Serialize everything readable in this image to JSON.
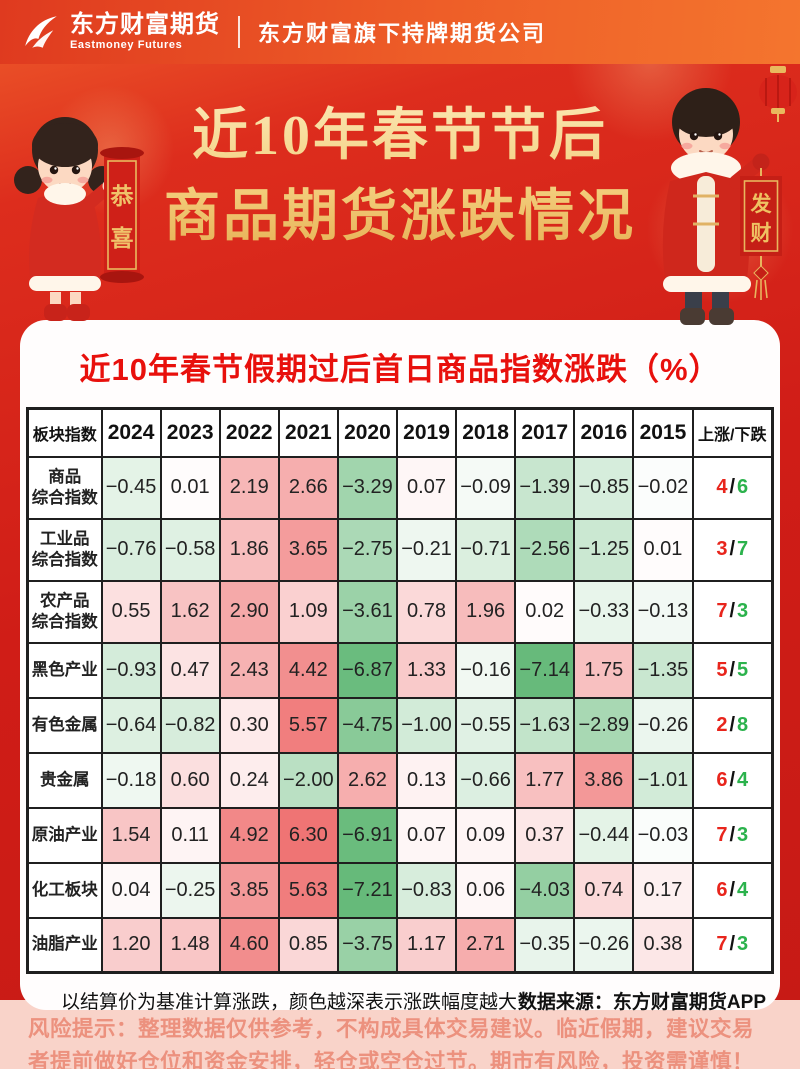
{
  "header": {
    "brand_cn": "东方财富期货",
    "brand_en": "Eastmoney Futures",
    "tagline": "东方财富旗下持牌期货公司"
  },
  "hero": {
    "title_line1": "近10年春节节后",
    "title_line2": "商品期货涨跌情况",
    "girl_scroll_text": "恭喜",
    "boy_tag_text": "发财"
  },
  "subtitle": "近10年春节假期过后首日商品指数涨跌（%）",
  "chart_data": {
    "type": "table",
    "title": "近10年春节假期过后首日商品指数涨跌（%）",
    "col_header": "板块指数",
    "updown_header": "上涨/下跌",
    "years": [
      "2024",
      "2023",
      "2022",
      "2021",
      "2020",
      "2019",
      "2018",
      "2017",
      "2016",
      "2015"
    ],
    "rows": [
      {
        "label": "商品综合指数",
        "label_lines": [
          "商品",
          "综合指数"
        ],
        "values": [
          -0.45,
          0.01,
          2.19,
          2.66,
          -3.29,
          0.07,
          -0.09,
          -1.39,
          -0.85,
          -0.02
        ],
        "up": 4,
        "down": 6
      },
      {
        "label": "工业品综合指数",
        "label_lines": [
          "工业品",
          "综合指数"
        ],
        "values": [
          -0.76,
          -0.58,
          1.86,
          3.65,
          -2.75,
          -0.21,
          -0.71,
          -2.56,
          -1.25,
          0.01
        ],
        "up": 3,
        "down": 7
      },
      {
        "label": "农产品综合指数",
        "label_lines": [
          "农产品",
          "综合指数"
        ],
        "values": [
          0.55,
          1.62,
          2.9,
          1.09,
          -3.61,
          0.78,
          1.96,
          0.02,
          -0.33,
          -0.13
        ],
        "up": 7,
        "down": 3
      },
      {
        "label": "黑色产业",
        "label_lines": [
          "黑色产业"
        ],
        "values": [
          -0.93,
          0.47,
          2.43,
          4.42,
          -6.87,
          1.33,
          -0.16,
          -7.14,
          1.75,
          -1.35
        ],
        "up": 5,
        "down": 5
      },
      {
        "label": "有色金属",
        "label_lines": [
          "有色金属"
        ],
        "values": [
          -0.64,
          -0.82,
          0.3,
          5.57,
          -4.75,
          -1.0,
          -0.55,
          -1.63,
          -2.89,
          -0.26
        ],
        "up": 2,
        "down": 8
      },
      {
        "label": "贵金属",
        "label_lines": [
          "贵金属"
        ],
        "values": [
          -0.18,
          0.6,
          0.24,
          -2.0,
          2.62,
          0.13,
          -0.66,
          1.77,
          3.86,
          -1.01
        ],
        "up": 6,
        "down": 4
      },
      {
        "label": "原油产业",
        "label_lines": [
          "原油产业"
        ],
        "values": [
          1.54,
          0.11,
          4.92,
          6.3,
          -6.91,
          0.07,
          0.09,
          0.37,
          -0.44,
          -0.03
        ],
        "up": 7,
        "down": 3
      },
      {
        "label": "化工板块",
        "label_lines": [
          "化工板块"
        ],
        "values": [
          0.04,
          -0.25,
          3.85,
          5.63,
          -7.21,
          -0.83,
          0.06,
          -4.03,
          0.74,
          0.17
        ],
        "up": 6,
        "down": 4
      },
      {
        "label": "油脂产业",
        "label_lines": [
          "油脂产业"
        ],
        "values": [
          1.2,
          1.48,
          4.6,
          0.85,
          -3.75,
          1.17,
          2.71,
          -0.35,
          -0.26,
          0.38
        ],
        "up": 7,
        "down": 3
      }
    ],
    "color_note": "颜色越深表示涨跌幅度越大"
  },
  "colors": {
    "up_cell_strong": "#ee6868",
    "down_cell_strong": "#66ba7a",
    "up_count_text": "#e8251c",
    "down_count_text": "#2bb24c",
    "title_gold": "#f3cf7e",
    "subtitle_red": "#e8100c",
    "risk_text": "#ec917e",
    "risk_band": "#f9d3c9"
  },
  "footer": {
    "note": "以结算价为基准计算涨跌，颜色越深表示涨跌幅度越大",
    "source": "数据来源：东方财富期货APP"
  },
  "risk": {
    "text": "风险提示：整理数据仅供参考，不构成具体交易建议。临近假期，建议交易者提前做好仓位和资金安排，轻仓或空仓过节。期市有风险，投资需谨慎！"
  }
}
